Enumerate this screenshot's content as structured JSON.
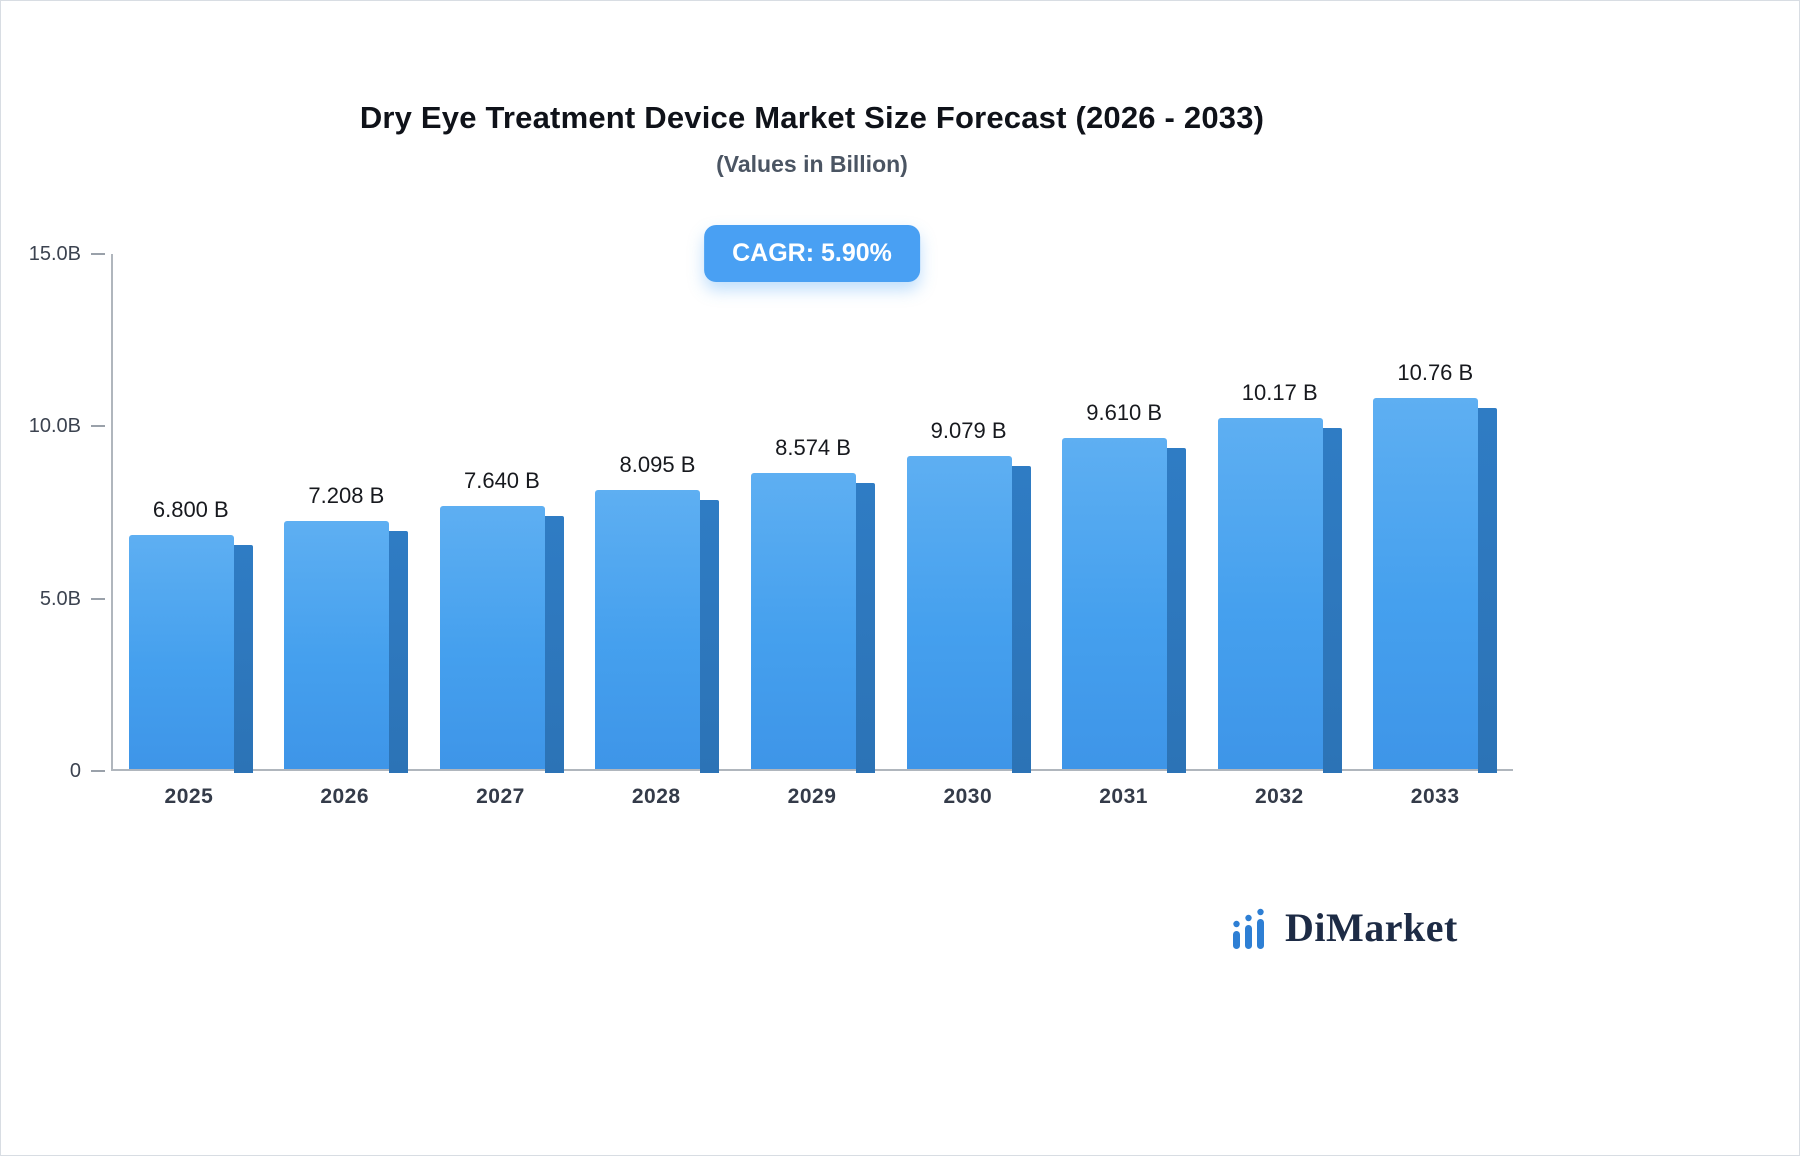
{
  "header": {
    "title": "Dry Eye Treatment Device Market Size Forecast (2026 - 2033)",
    "subtitle": "(Values in Billion)",
    "cagr_badge": "CAGR: 5.90%"
  },
  "logo": {
    "text": "DiMarket",
    "icon": "bar-chart-icon"
  },
  "chart_data": {
    "type": "bar",
    "title": "Dry Eye Treatment Device Market Size Forecast (2026 - 2033)",
    "subtitle": "(Values in Billion)",
    "categories": [
      "2025",
      "2026",
      "2027",
      "2028",
      "2029",
      "2030",
      "2031",
      "2032",
      "2033"
    ],
    "values": [
      6.8,
      7.208,
      7.64,
      8.095,
      8.574,
      9.079,
      9.61,
      10.17,
      10.76
    ],
    "value_labels": [
      "6.800 B",
      "7.208 B",
      "7.640 B",
      "8.095 B",
      "8.574 B",
      "9.079 B",
      "9.610 B",
      "10.17 B",
      "10.76 B"
    ],
    "annotations": [
      "CAGR: 5.90%"
    ],
    "xlabel": "",
    "ylabel": "",
    "ylim": [
      0,
      15
    ],
    "yticks": [
      {
        "value": 0,
        "label": "0"
      },
      {
        "value": 5,
        "label": "5.0B"
      },
      {
        "value": 10,
        "label": "10.0B"
      },
      {
        "value": 15,
        "label": "15.0B"
      }
    ],
    "grid": false,
    "legend": "none",
    "colors": {
      "bar_top": "#5eaff2",
      "bar_bottom": "#3e95e8",
      "bar_side": "#2c73b6",
      "badge": "#49a0f3",
      "axis": "#b0b6bd"
    }
  }
}
